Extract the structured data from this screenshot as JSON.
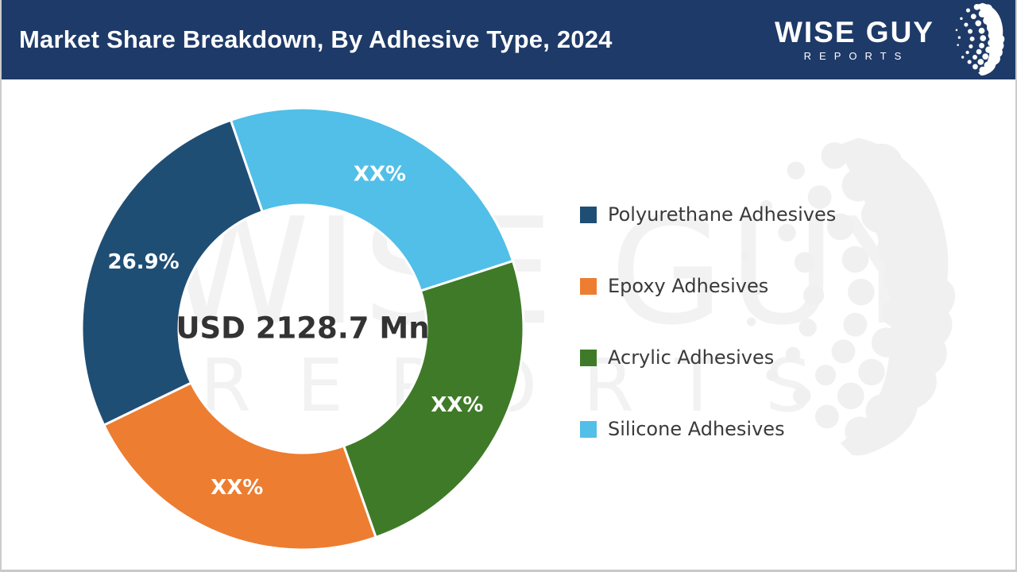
{
  "header": {
    "title": "Market Share Breakdown, By Adhesive Type, 2024",
    "logo": {
      "line1": "WISE GUY",
      "line2": "REPORTS"
    },
    "bg_color": "#1e3a68"
  },
  "watermark": {
    "line1": "WISE GUY",
    "line2": "REPORTS"
  },
  "chart_data": {
    "type": "pie",
    "subtype": "donut",
    "title": "Market Share Breakdown, By Adhesive Type, 2024",
    "center_label": "USD 2128.7 Mn",
    "start_angle_deg": -19,
    "direction": "counterclockwise",
    "inner_radius_ratio": 0.56,
    "legend_position": "right",
    "slices": [
      {
        "name": "Polyurethane Adhesives",
        "value_pct": 26.9,
        "display_label": "26.9%",
        "color": "#1f4e74"
      },
      {
        "name": "Epoxy Adhesives",
        "value_pct": 23.2,
        "display_label": "XX%",
        "color": "#ed7d31"
      },
      {
        "name": "Acrylic Adhesives",
        "value_pct": 24.6,
        "display_label": "XX%",
        "color": "#3f7a28"
      },
      {
        "name": "Silicone Adhesives",
        "value_pct": 25.3,
        "display_label": "XX%",
        "color": "#51bfe8"
      }
    ]
  }
}
